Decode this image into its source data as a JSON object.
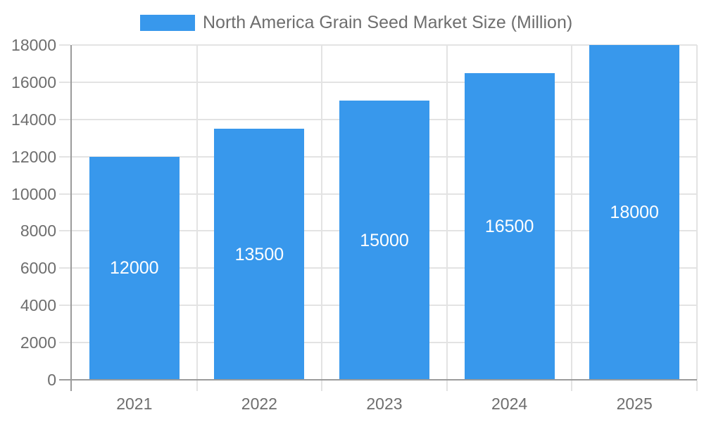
{
  "chart_data": {
    "type": "bar",
    "title": "North America Grain Seed Market Size (Million)",
    "legend": [
      "North America Grain Seed Market Size (Million)"
    ],
    "legend_position": "top-center",
    "categories": [
      "2021",
      "2022",
      "2023",
      "2024",
      "2025"
    ],
    "values": [
      12000,
      13500,
      15000,
      16500,
      18000
    ],
    "bar_labels": [
      "12000",
      "13500",
      "15000",
      "16500",
      "18000"
    ],
    "xlabel": "",
    "ylabel": "",
    "ylim": [
      0,
      18000
    ],
    "ytick_step": 2000,
    "yticks": [
      0,
      2000,
      4000,
      6000,
      8000,
      10000,
      12000,
      14000,
      16000,
      18000
    ],
    "grid": true,
    "colors": {
      "bar": "#3898ec",
      "bar_label": "#ffffff",
      "axis_line": "#9b9b9b",
      "grid_line": "#e3e3e3",
      "tick_label": "#6e6e6e",
      "legend_text": "#6e6e6e",
      "background": "#ffffff"
    }
  }
}
